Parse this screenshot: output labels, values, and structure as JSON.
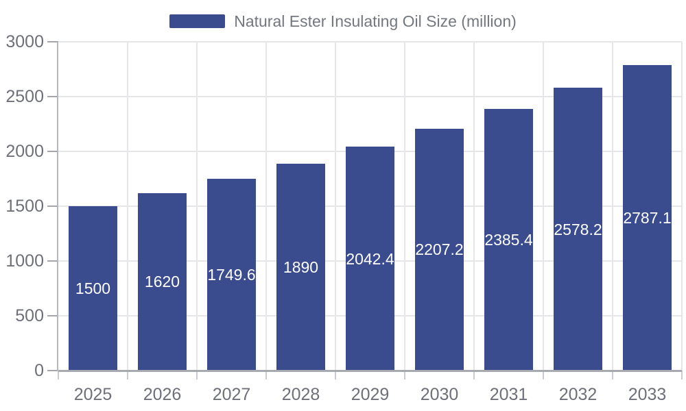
{
  "legend": {
    "label": "Natural Ester Insulating Oil Size (million)",
    "swatch_color": "#3A4B8E"
  },
  "chart_data": {
    "type": "bar",
    "title": "Natural Ester Insulating Oil Size (million)",
    "categories": [
      "2025",
      "2026",
      "2027",
      "2028",
      "2029",
      "2030",
      "2031",
      "2032",
      "2033"
    ],
    "series": [
      {
        "name": "Natural Ester Insulating Oil Size (million)",
        "values": [
          1500,
          1620,
          1749.6,
          1890,
          2042.4,
          2207.2,
          2385.4,
          2578.2,
          2787.1
        ],
        "value_labels": [
          "1500",
          "1620",
          "1749.6",
          "1890",
          "2042.4",
          "2207.2",
          "2385.4",
          "2578.2",
          "2787.1"
        ]
      }
    ],
    "xlabel": "",
    "ylabel": "",
    "ylim": [
      0,
      3000
    ],
    "y_ticks": [
      0,
      500,
      1000,
      1500,
      2000,
      2500,
      3000
    ],
    "grid": true,
    "legend_position": "top",
    "value_label_position": "inside-center"
  },
  "colors": {
    "bar": "#3A4B8E",
    "bar_value_label": "#ffffff",
    "axis_label": "#6E7079",
    "legend_text": "#73777F",
    "gridline": "#E4E6E9",
    "axis_line": "#A6A9AF"
  }
}
